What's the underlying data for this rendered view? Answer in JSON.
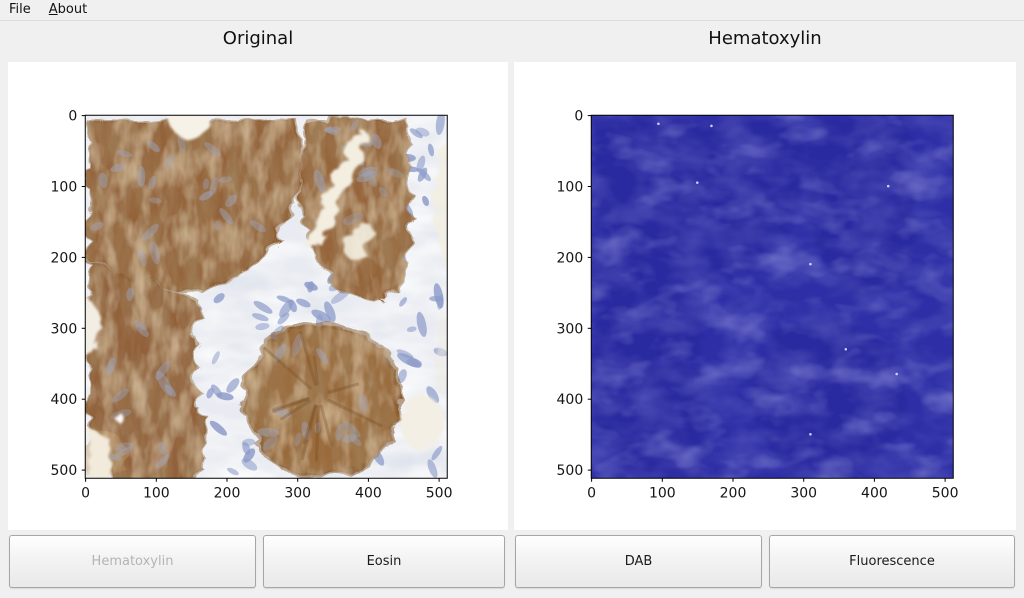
{
  "menu": {
    "items": [
      {
        "label": "File",
        "underline_index": null
      },
      {
        "label": "About",
        "underline_index": 0
      }
    ]
  },
  "panels": [
    {
      "title": "Original",
      "xticks": [
        0,
        100,
        200,
        300,
        400,
        500
      ],
      "yticks": [
        0,
        100,
        200,
        300,
        400,
        500
      ],
      "image_description": "IHC histology micrograph: brown DAB-stained glandular epithelium with pale blue hematoxylin-stained stroma and scattered blue nuclei"
    },
    {
      "title": "Hematoxylin",
      "xticks": [
        0,
        100,
        200,
        300,
        400,
        500
      ],
      "yticks": [
        0,
        100,
        200,
        300,
        400,
        500
      ],
      "image_description": "Hematoxylin channel separation: near-uniform deep blue field with faint tissue texture and sparse bright specks"
    }
  ],
  "buttons": [
    {
      "label": "Hematoxylin",
      "enabled": false
    },
    {
      "label": "Eosin",
      "enabled": true
    },
    {
      "label": "DAB",
      "enabled": true
    },
    {
      "label": "Fluorescence",
      "enabled": true
    }
  ],
  "colors": {
    "window_bg": "#f0f0f0",
    "panel_bg": "#ffffff",
    "hematoxylin_field": "#2e2fa6",
    "dab_brown": "#94633a",
    "stroma": "#e8ebf1",
    "nuclei_blue": "#8b9ac8",
    "axis_text": "#151515",
    "disabled_text": "#b4b4b4"
  }
}
